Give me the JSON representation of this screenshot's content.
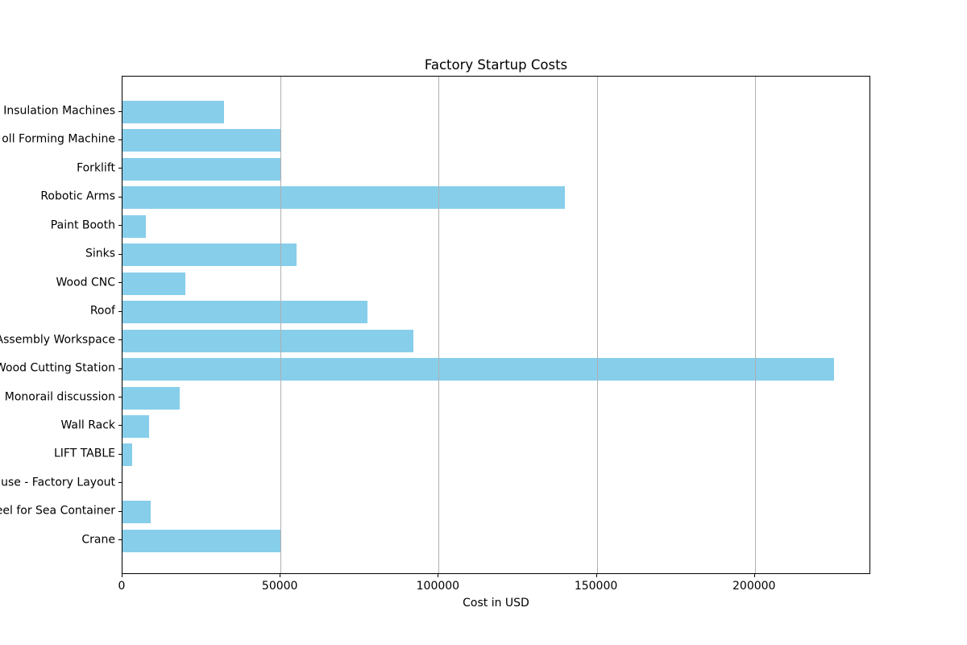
{
  "chart_data": {
    "type": "bar",
    "orientation": "horizontal",
    "title": "Factory Startup Costs",
    "xlabel": "Cost in USD",
    "categories": [
      "Insulation Machines",
      "oll Forming Machine",
      "Forklift",
      "Robotic Arms",
      "Paint Booth",
      "Sinks",
      "Wood CNC",
      "Roof",
      "Assembly Workspace",
      "Wood Cutting Station",
      "Monorail discussion",
      "Wall Rack",
      "LIFT TABLE",
      "use - Factory Layout",
      "eel for Sea Container",
      "Crane"
    ],
    "values": [
      32000,
      50000,
      50000,
      140000,
      7500,
      55000,
      20000,
      77500,
      92000,
      225000,
      18000,
      8500,
      3000,
      0,
      9000,
      50000
    ],
    "xlim": [
      0,
      236250
    ],
    "xticks": [
      0,
      50000,
      100000,
      150000,
      200000
    ],
    "xtick_labels": [
      "0",
      "50000",
      "100000",
      "150000",
      "200000"
    ],
    "bar_color": "#87CEEB",
    "gridline_color": "#b0b0b0",
    "grid": "vertical, drawn above bars",
    "legend_position": "none"
  }
}
